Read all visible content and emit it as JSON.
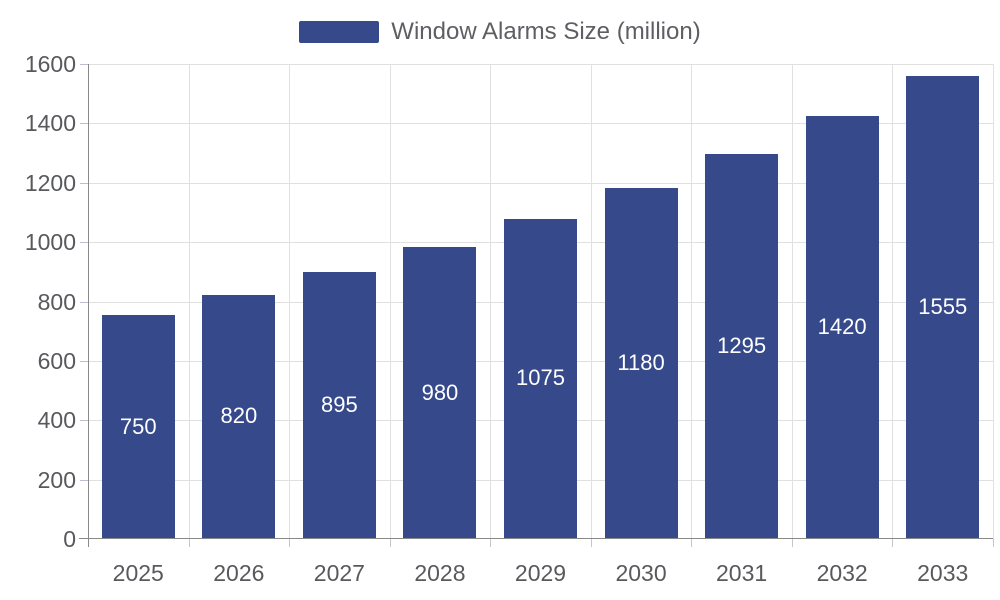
{
  "legend": {
    "items": [
      {
        "label": "Window Alarms Size (million)",
        "color": "#36498b"
      }
    ]
  },
  "chart_data": {
    "type": "bar",
    "title": "",
    "categories": [
      "2025",
      "2026",
      "2027",
      "2028",
      "2029",
      "2030",
      "2031",
      "2032",
      "2033"
    ],
    "series": [
      {
        "name": "Window Alarms Size (million)",
        "color": "#36498b",
        "values": [
          750,
          820,
          895,
          980,
          1075,
          1180,
          1295,
          1420,
          1555
        ]
      }
    ],
    "xlabel": "",
    "ylabel": "",
    "ylim": [
      0,
      1600
    ],
    "ytick_step": 200,
    "grid": true,
    "legend_position": "top-center",
    "value_labels": {
      "position": "inside-center",
      "color": "#ffffff"
    }
  },
  "colors": {
    "background": "#ffffff",
    "grid": "#e0e0e0",
    "axis": "#898989",
    "tick": "#bcc0cc",
    "label_text": "#58595d",
    "legend_text": "#5e5f63"
  }
}
